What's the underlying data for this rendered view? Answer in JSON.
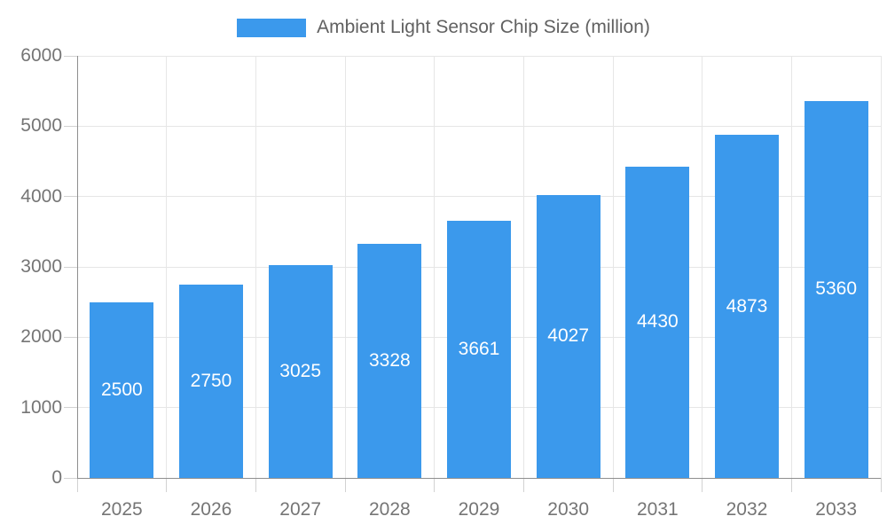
{
  "chart_data": {
    "type": "bar",
    "title": "Ambient Light Sensor Chip Size (million)",
    "categories": [
      "2025",
      "2026",
      "2027",
      "2028",
      "2029",
      "2030",
      "2031",
      "2032",
      "2033"
    ],
    "values": [
      2500,
      2750,
      3025,
      3328,
      3661,
      4027,
      4430,
      4873,
      5360
    ],
    "series": [
      {
        "name": "Ambient Light Sensor Chip Size (million)",
        "values": [
          2500,
          2750,
          3025,
          3328,
          3661,
          4027,
          4430,
          4873,
          5360
        ]
      }
    ],
    "xlabel": "",
    "ylabel": "",
    "ylim": [
      0,
      6000
    ],
    "y_ticks": [
      0,
      1000,
      2000,
      3000,
      4000,
      5000,
      6000
    ],
    "grid": true,
    "legend_position": "top",
    "bar_labels_visible": true,
    "colors": {
      "bar": "#3b99ec",
      "bar_value_text": "#ffffff",
      "grid_line": "#e6e6e6",
      "axis_line": "#8f8f8f",
      "tick_line": "#d2d2d2",
      "axis_text": "#757575",
      "legend_text": "#616161",
      "background": "#ffffff"
    }
  }
}
